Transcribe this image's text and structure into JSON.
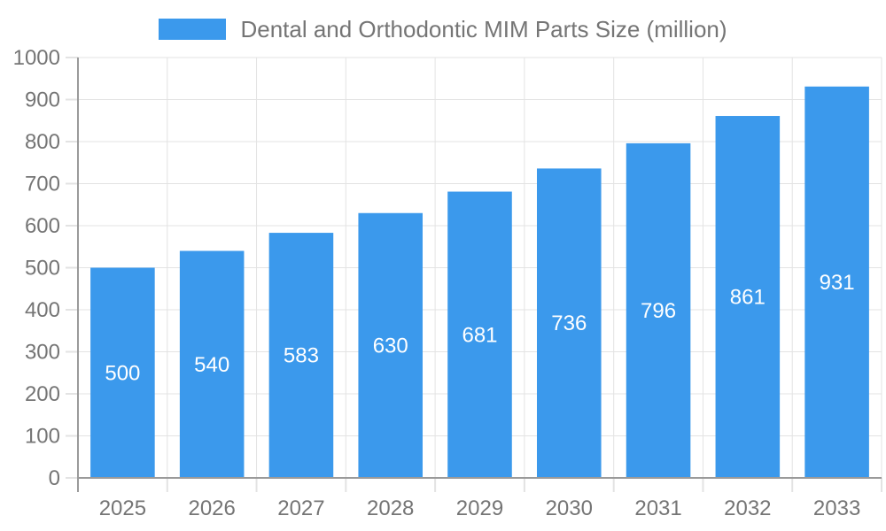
{
  "chart_data": {
    "type": "bar",
    "title": "Dental and Orthodontic MIM Parts Size (million)",
    "categories": [
      "2025",
      "2026",
      "2027",
      "2028",
      "2029",
      "2030",
      "2031",
      "2032",
      "2033"
    ],
    "values": [
      500,
      540,
      583,
      630,
      681,
      736,
      796,
      861,
      931
    ],
    "xlabel": "",
    "ylabel": "",
    "ylim": [
      0,
      1000
    ],
    "y_ticks": [
      0,
      100,
      200,
      300,
      400,
      500,
      600,
      700,
      800,
      900,
      1000
    ],
    "grid": true,
    "legend_position": "top-center",
    "bar_value_labels": "inside-middle-white",
    "colors": {
      "bar": "#3B99EC",
      "grid": "#E3E3E3",
      "axis": "#9A9A9A",
      "tick_text": "#757575",
      "bar_label_text": "#FFFFFF",
      "background": "#FFFFFF"
    }
  }
}
